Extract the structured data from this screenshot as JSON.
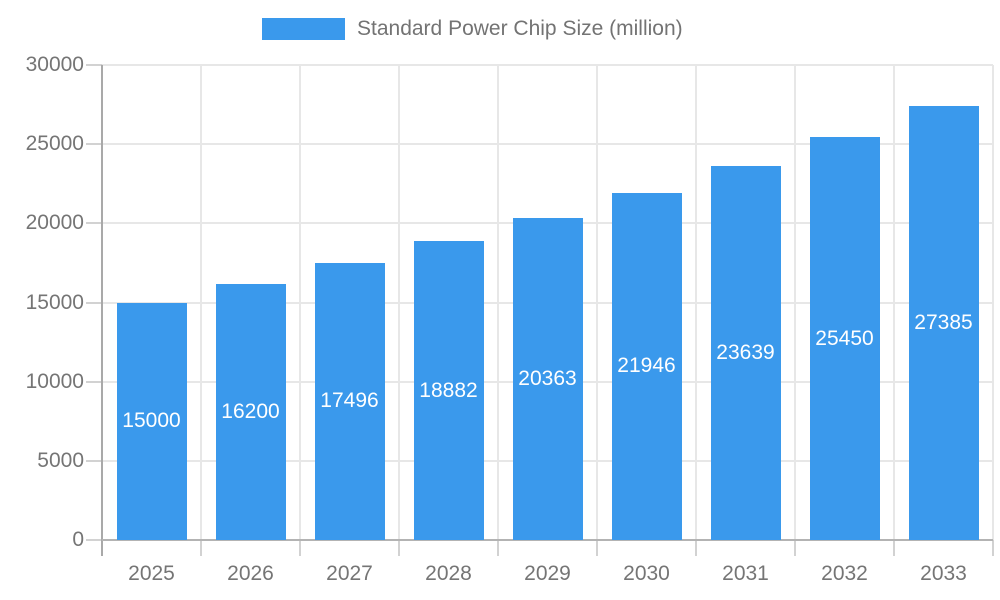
{
  "legend": {
    "label": "Standard Power Chip Size (million)"
  },
  "colors": {
    "bar": "#3a99ec",
    "grid": "#e7e7e7",
    "axis_line_y": "#a9a9a9",
    "axis_line_x": "#b3b3b3",
    "tick": "#d2d2d2",
    "axis_text": "#757575",
    "legend_text": "#737373",
    "bar_label_text": "#ffffff",
    "background": "#ffffff"
  },
  "chart_data": {
    "type": "bar",
    "title": "",
    "series_name": "Standard Power Chip Size (million)",
    "categories": [
      "2025",
      "2026",
      "2027",
      "2028",
      "2029",
      "2030",
      "2031",
      "2032",
      "2033"
    ],
    "values": [
      15000,
      16200,
      17496,
      18882,
      20363,
      21946,
      23639,
      25450,
      27385
    ],
    "xlabel": "",
    "ylabel": "",
    "ylim": [
      0,
      30000
    ],
    "yticks": [
      0,
      5000,
      10000,
      15000,
      20000,
      25000,
      30000
    ],
    "grid": true,
    "legend_position": "top-center",
    "bar_label_position": "inside-middle"
  }
}
